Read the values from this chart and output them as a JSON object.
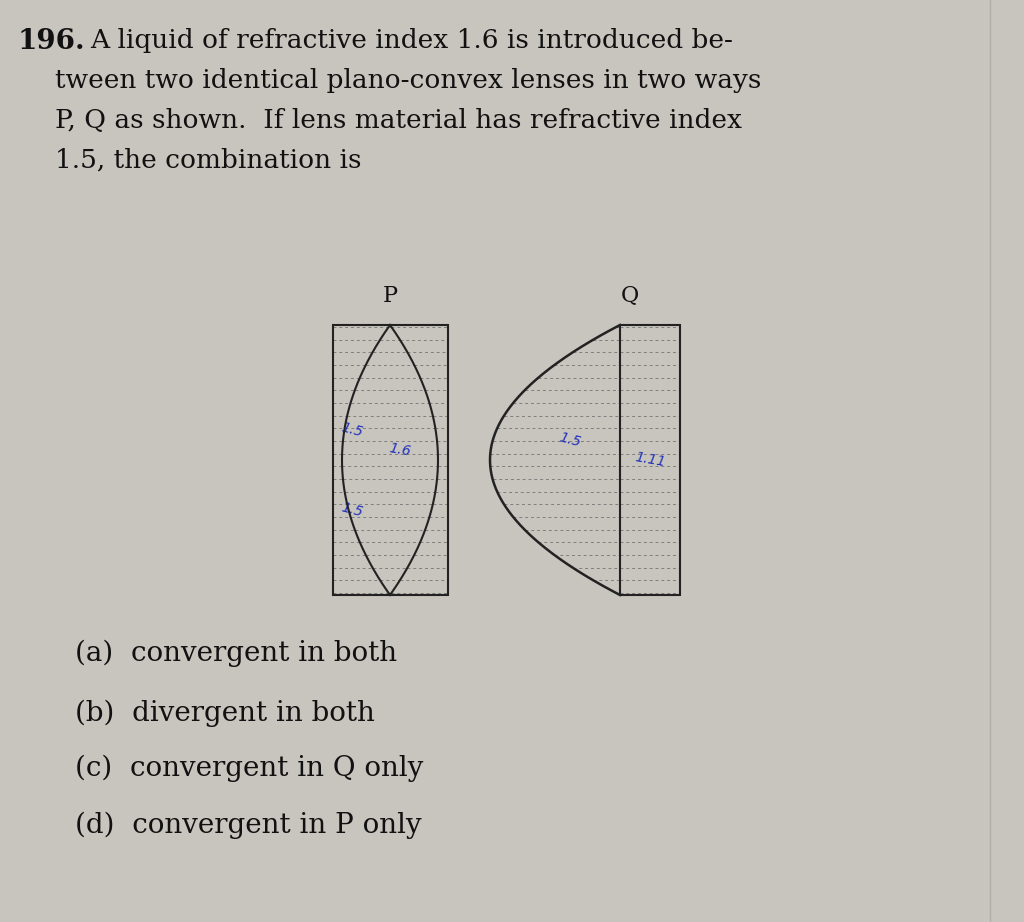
{
  "bg_color": "#c8c4be",
  "text_color": "#111111",
  "question_number": "196.",
  "question_lines": [
    "A liquid of refractive index 1.6 is introduced be-",
    "tween two identical plano-convex lenses in two ways",
    "P, Q as shown.  If lens material has refractive index",
    "1.5, the combination is"
  ],
  "label_P": "P",
  "label_Q": "Q",
  "options": [
    "(a)  convergent in both",
    "(b)  divergent in both",
    "(c)  convergent in Q only",
    "(d)  convergent in P only"
  ],
  "font_size_q_num": 20,
  "font_size_q_text": 19,
  "font_size_options": 20,
  "font_size_labels": 16,
  "hatch_color": "#777777",
  "line_color": "#222222",
  "annot_color": "#2233bb"
}
